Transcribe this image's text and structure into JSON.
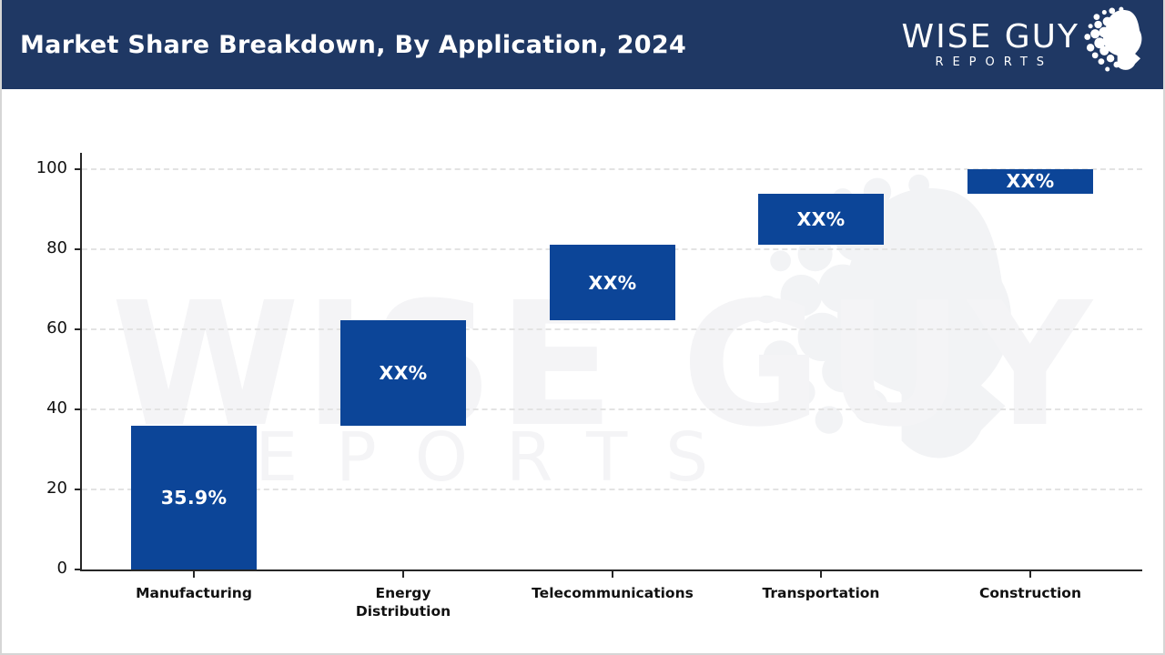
{
  "header": {
    "title": "Market Share Breakdown, By Application, 2024",
    "bg_color": "#1f3864",
    "logo": {
      "wordmark": "WISE GUY",
      "subtext": "REPORTS"
    }
  },
  "watermark": {
    "wordmark": "WISE GUY",
    "subtext": "REPORTS"
  },
  "chart_data": {
    "type": "bar",
    "subtype": "waterfall",
    "title": "Market Share Breakdown, By Application, 2024",
    "categories": [
      "Manufacturing",
      "Energy\nDistribution",
      "Telecommunications",
      "Transportation",
      "Construction"
    ],
    "segments": [
      {
        "start": 0,
        "end": 35.9,
        "value": 35.9,
        "label": "35.9%"
      },
      {
        "start": 35.9,
        "end": 62.3,
        "value": 26.4,
        "label": "XX%"
      },
      {
        "start": 62.3,
        "end": 81.1,
        "value": 18.8,
        "label": "XX%"
      },
      {
        "start": 81.1,
        "end": 93.9,
        "value": 12.8,
        "label": "XX%"
      },
      {
        "start": 93.9,
        "end": 100.0,
        "value": 6.1,
        "label": "XX%"
      }
    ],
    "y_ticks": [
      0,
      20,
      40,
      60,
      80,
      100
    ],
    "ylim": [
      0,
      104
    ],
    "xlabel": "",
    "ylabel": "",
    "grid": "horizontal-dashed",
    "legend": "none",
    "bar_color": "#0c4598",
    "data_label_color": "#ffffff",
    "axis_color": "#262626"
  }
}
